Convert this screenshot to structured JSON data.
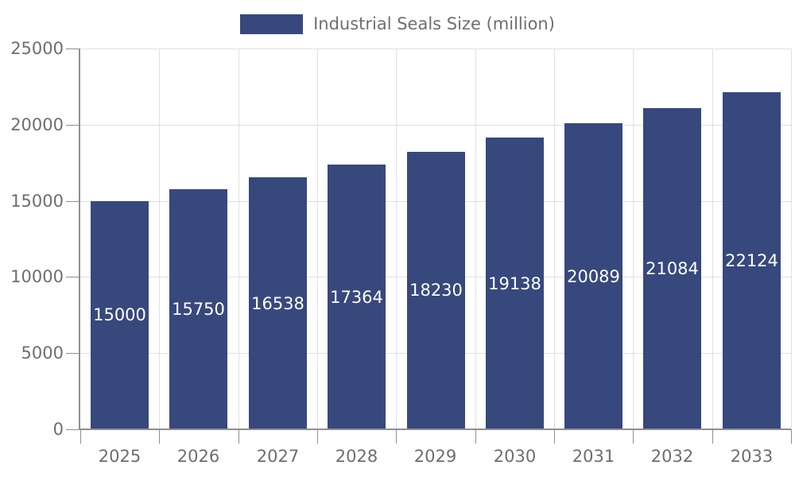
{
  "legend": {
    "label": "Industrial Seals Size (million)"
  },
  "chart_data": {
    "type": "bar",
    "title": "Industrial Seals Size (million)",
    "series_name": "Industrial Seals Size (million)",
    "categories": [
      "2025",
      "2026",
      "2027",
      "2028",
      "2029",
      "2030",
      "2031",
      "2032",
      "2033"
    ],
    "values": [
      15000,
      15750,
      16538,
      17364,
      18230,
      19138,
      20089,
      21084,
      22124
    ],
    "xlabel": "",
    "ylabel": "",
    "ylim": [
      0,
      25000
    ],
    "yticks": [
      0,
      5000,
      10000,
      15000,
      20000,
      25000
    ],
    "grid": true,
    "legend_position": "top",
    "colors": {
      "bar": "#37487c",
      "grid": "#e0e0e0",
      "axis": "#8f8f8f",
      "tick_label": "#6e6e6e",
      "legend_text": "#6f6f6f",
      "data_label": "#ffffff",
      "background": "#ffffff"
    }
  }
}
